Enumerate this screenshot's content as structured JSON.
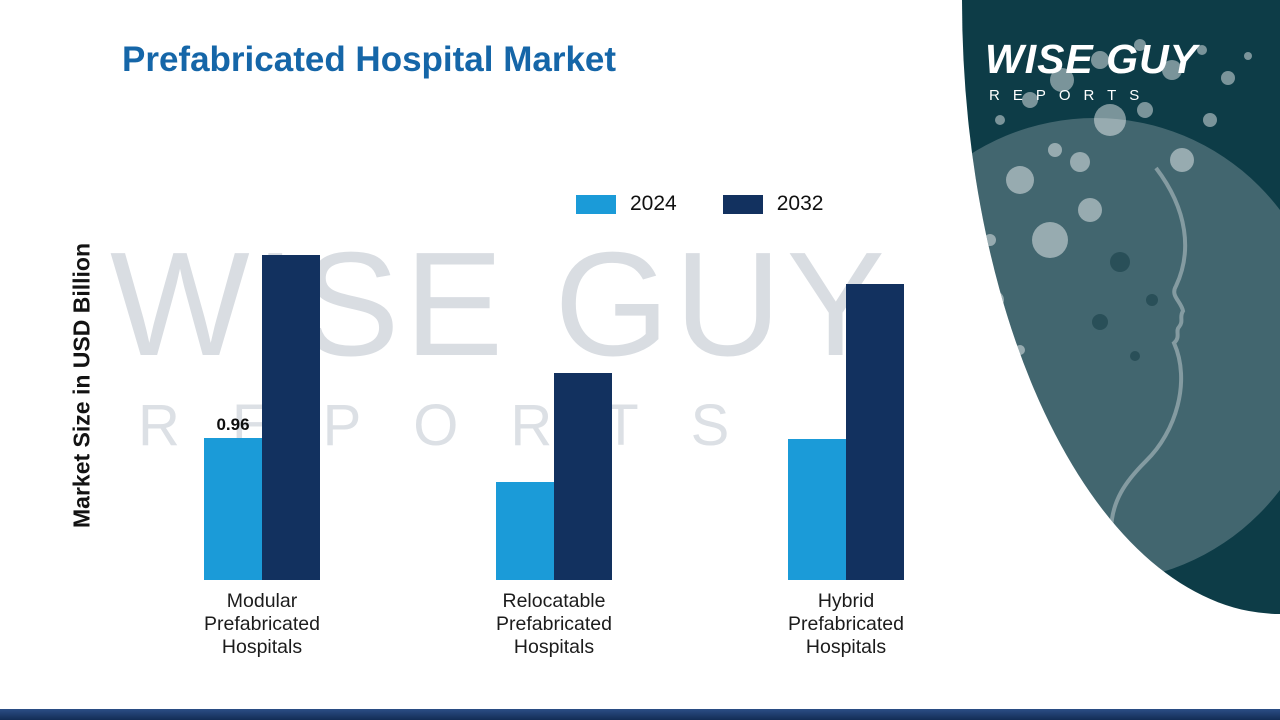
{
  "logo": {
    "brand": "WISE GUY",
    "sub": "REPORTS",
    "graphic": "head-profile-dots"
  },
  "watermark": {
    "line1": "WISE GUY",
    "line2": "REPORTS"
  },
  "colors": {
    "title_blue": "#1566a8",
    "series_2024": "#1b9bd8",
    "series_2032": "#12315f",
    "panel_teal": "#0d3c47",
    "watermark_gray": "#d9dde2",
    "footer_navy": "#132c55"
  },
  "chart_data": {
    "type": "bar",
    "title": "Prefabricated Hospital Market",
    "ylabel": "Market Size in USD Billion",
    "xlabel": "",
    "categories": [
      "Modular Prefabricated Hospitals",
      "Relocatable Prefabricated Hospitals",
      "Hybrid Prefabricated Hospitals"
    ],
    "series": [
      {
        "name": "2024",
        "color": "#1b9bd8",
        "values": [
          0.96,
          0.66,
          0.95
        ]
      },
      {
        "name": "2032",
        "color": "#12315f",
        "values": [
          2.2,
          1.4,
          2.0
        ]
      }
    ],
    "ylim": [
      0,
      2.4
    ],
    "grid": false,
    "legend_position": "top",
    "bar_value_labels": [
      {
        "series": "2024",
        "category_index": 0,
        "text": "0.96"
      }
    ]
  }
}
